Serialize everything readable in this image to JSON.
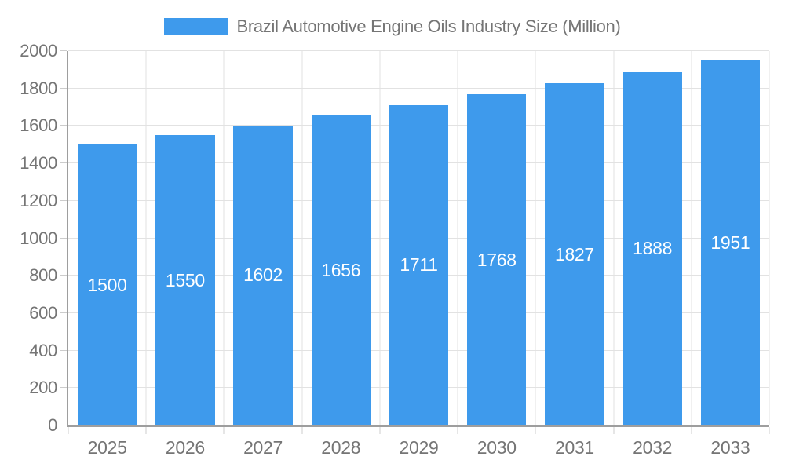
{
  "chart_data": {
    "type": "bar",
    "title": "Brazil Automotive Engine Oils Industry Size (Million)",
    "categories": [
      "2025",
      "2026",
      "2027",
      "2028",
      "2029",
      "2030",
      "2031",
      "2032",
      "2033"
    ],
    "values": [
      1500,
      1550,
      1602,
      1656,
      1711,
      1768,
      1827,
      1888,
      1951
    ],
    "xlabel": "",
    "ylabel": "",
    "ylim": [
      0,
      2000
    ],
    "yticks": [
      0,
      200,
      400,
      600,
      800,
      1000,
      1200,
      1400,
      1600,
      1800,
      2000
    ],
    "grid": true,
    "legend_position": "top-center",
    "bar_color": "#3E9AEC",
    "value_label_color": "#FFFFFF",
    "axis_text_color": "#757575",
    "grid_color": "#E2E2E2",
    "axis_line_color": "#9E9E9E"
  }
}
